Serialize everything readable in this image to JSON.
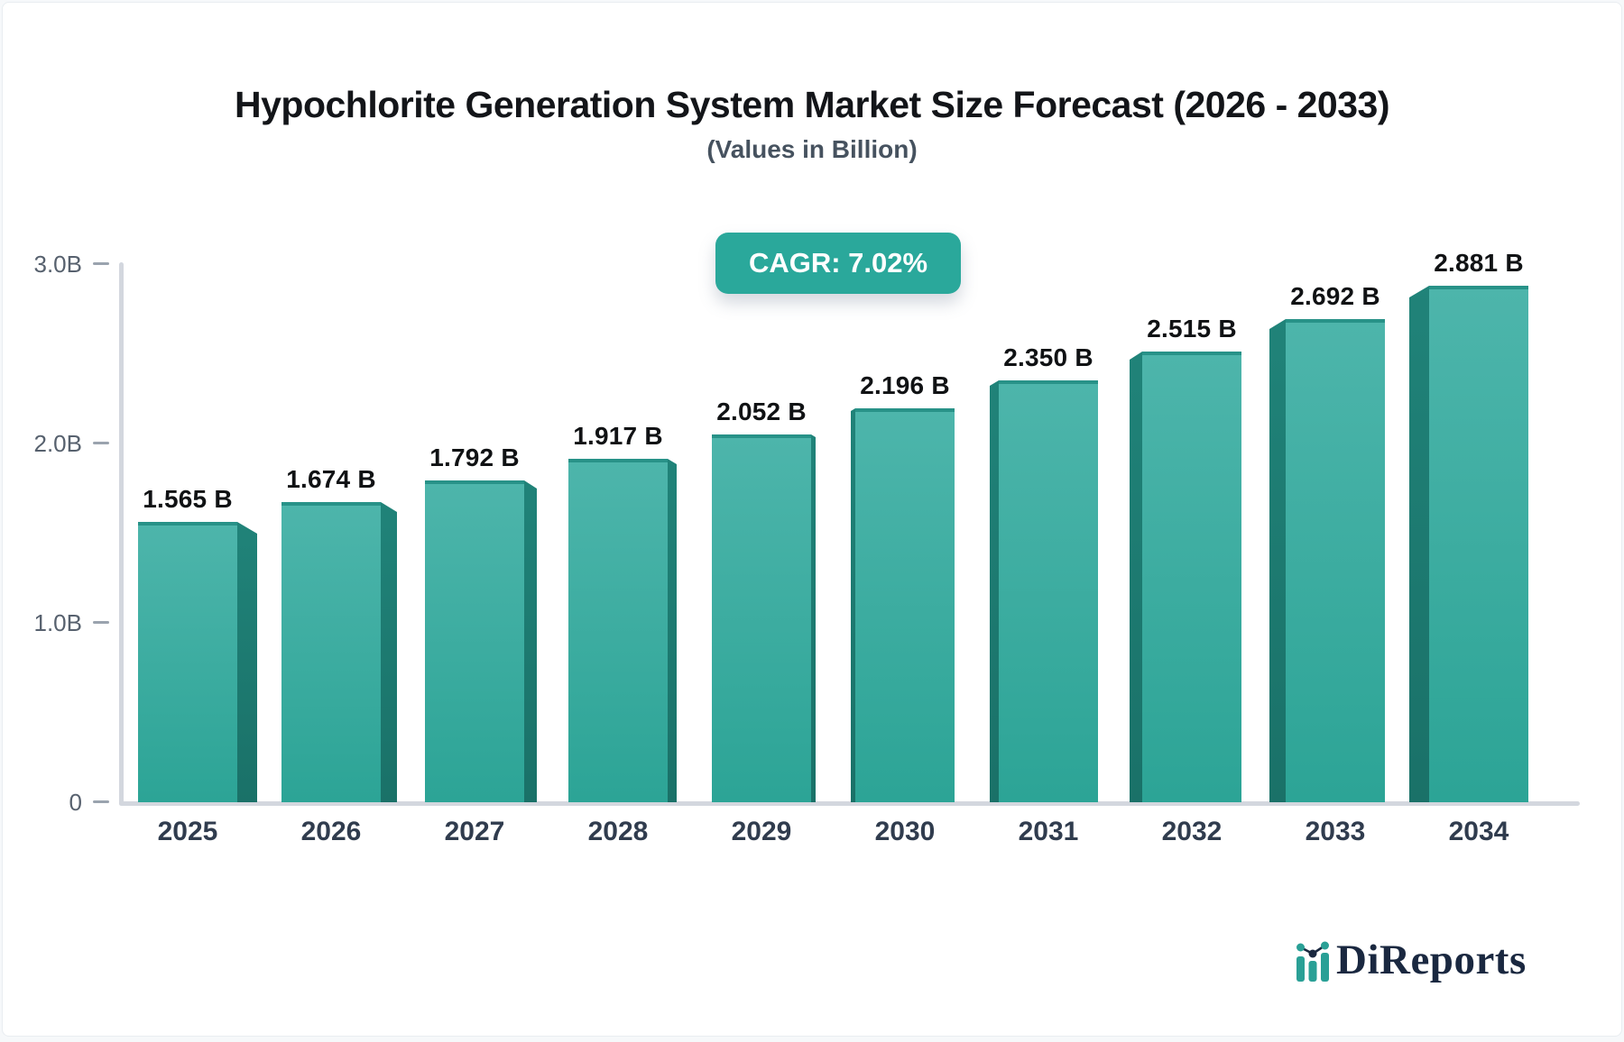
{
  "header": {
    "title": "Hypochlorite Generation System Market Size Forecast (2026 - 2033)",
    "subtitle": "(Values in Billion)"
  },
  "badge": {
    "label": "CAGR: 7.02%"
  },
  "chart_data": {
    "type": "bar",
    "title": "Hypochlorite Generation System Market Size Forecast (2026 - 2033)",
    "subtitle": "(Values in Billion)",
    "categories": [
      "2025",
      "2026",
      "2027",
      "2028",
      "2029",
      "2030",
      "2031",
      "2032",
      "2033",
      "2034"
    ],
    "values": [
      1.565,
      1.674,
      1.792,
      1.917,
      2.052,
      2.196,
      2.35,
      2.515,
      2.692,
      2.881
    ],
    "value_labels": [
      "1.565 B",
      "1.674 B",
      "1.792 B",
      "1.917 B",
      "2.052 B",
      "2.196 B",
      "2.350 B",
      "2.515 B",
      "2.692 B",
      "2.881 B"
    ],
    "xlabel": "",
    "ylabel": "",
    "ylim": [
      0,
      3.0
    ],
    "y_ticks": [
      {
        "label": "3.0B",
        "value": 3.0
      },
      {
        "label": "2.0B",
        "value": 2.0
      },
      {
        "label": "1.0B",
        "value": 1.0
      },
      {
        "label": "0",
        "value": 0
      }
    ],
    "grid": false,
    "legend": "none",
    "annotation": "CAGR: 7.02%"
  },
  "footer": {
    "brand": "DiReports",
    "logo_icon": "direports-bar-chart-logo-icon"
  },
  "colors": {
    "bar_top": "#4db5ab",
    "bar_bottom": "#2ca496",
    "bar_top_edge": "#289288",
    "bar_side": "#1f8076",
    "badge_bg": "#2aa89b",
    "axis_line": "#d3d7de",
    "tick_label": "#57616e",
    "year_label": "#303c4e",
    "value_label": "#101214",
    "brand_navy": "#1a2840",
    "brand_teal": "#2aa096"
  }
}
